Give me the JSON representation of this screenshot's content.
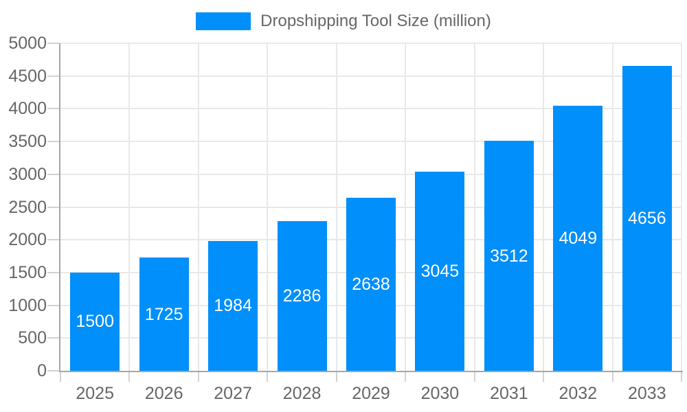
{
  "legend": {
    "label": "Dropshipping Tool Size (million)",
    "swatch_color": "#008ffb"
  },
  "chart_data": {
    "type": "bar",
    "title": "Dropshipping Tool Size (million)",
    "series_name": "Dropshipping Tool Size (million)",
    "categories": [
      "2025",
      "2026",
      "2027",
      "2028",
      "2029",
      "2030",
      "2031",
      "2032",
      "2033"
    ],
    "values": [
      1500,
      1725,
      1984,
      2286,
      2638,
      3045,
      3512,
      4049,
      4656
    ],
    "value_labels": [
      "1500",
      "1725",
      "1984",
      "2286",
      "2638",
      "3045",
      "3512",
      "4049",
      "4656"
    ],
    "xlabel": "",
    "ylabel": "",
    "ylim": [
      0,
      5000
    ],
    "ytick_step": 500,
    "ytick_labels": [
      "0",
      "500",
      "1000",
      "1500",
      "2000",
      "2500",
      "3000",
      "3500",
      "4000",
      "4500",
      "5000"
    ],
    "grid": "on",
    "legend_position": "top",
    "bar_color": "#008ffb",
    "value_label_color": "#ffffff",
    "axis_label_color": "#666666"
  }
}
